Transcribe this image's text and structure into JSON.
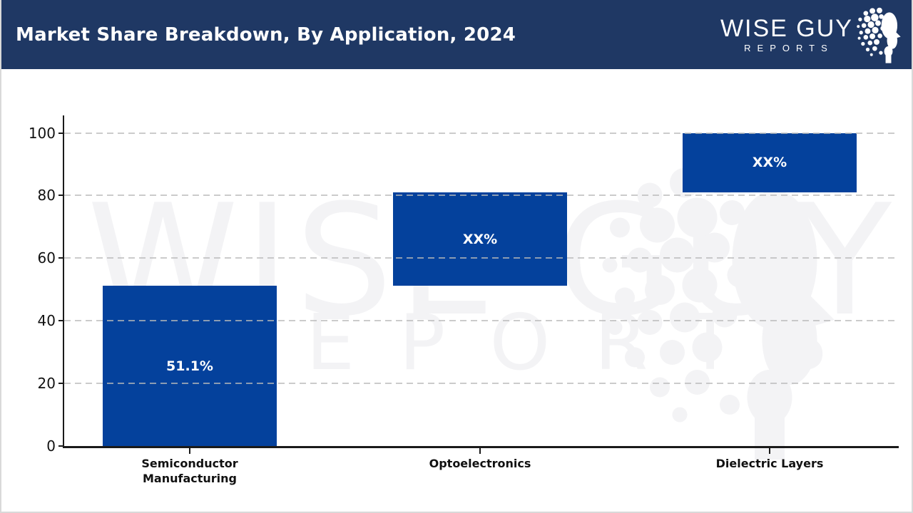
{
  "header": {
    "title": "Market Share Breakdown, By Application, 2024",
    "logo": {
      "line1": "WISE GUY",
      "line2": "REPORTS"
    }
  },
  "watermark": {
    "line1": "WISE GUY",
    "line2": "REPORTS"
  },
  "colors": {
    "header_bg": "#1f3864",
    "bar_fill": "#04419c",
    "bar_label_text": "#ffffff",
    "axis": "#1a1a1a",
    "gridline": "#c9c9c9",
    "watermark": "#f3f3f5",
    "page_border": "#d9d9d9"
  },
  "chart_data": {
    "type": "bar",
    "subtype": "waterfall",
    "title": "Market Share Breakdown, By Application, 2024",
    "categories": [
      "Semiconductor Manufacturing",
      "Optoelectronics",
      "Dielectric Layers"
    ],
    "segments": [
      {
        "category": "Semiconductor Manufacturing",
        "start": 0,
        "end": 51.1,
        "value": 51.1,
        "label": "51.1%"
      },
      {
        "category": "Optoelectronics",
        "start": 51.1,
        "end": 81.1,
        "value": 30.0,
        "label": "XX%"
      },
      {
        "category": "Dielectric Layers",
        "start": 81.1,
        "end": 100,
        "value": 18.9,
        "label": "XX%"
      }
    ],
    "yticks": [
      0,
      20,
      40,
      60,
      80,
      100
    ],
    "ylim": [
      0,
      106
    ],
    "xlabel": "",
    "ylabel": "",
    "grid": "dashed-horizontal",
    "legend": "none"
  }
}
